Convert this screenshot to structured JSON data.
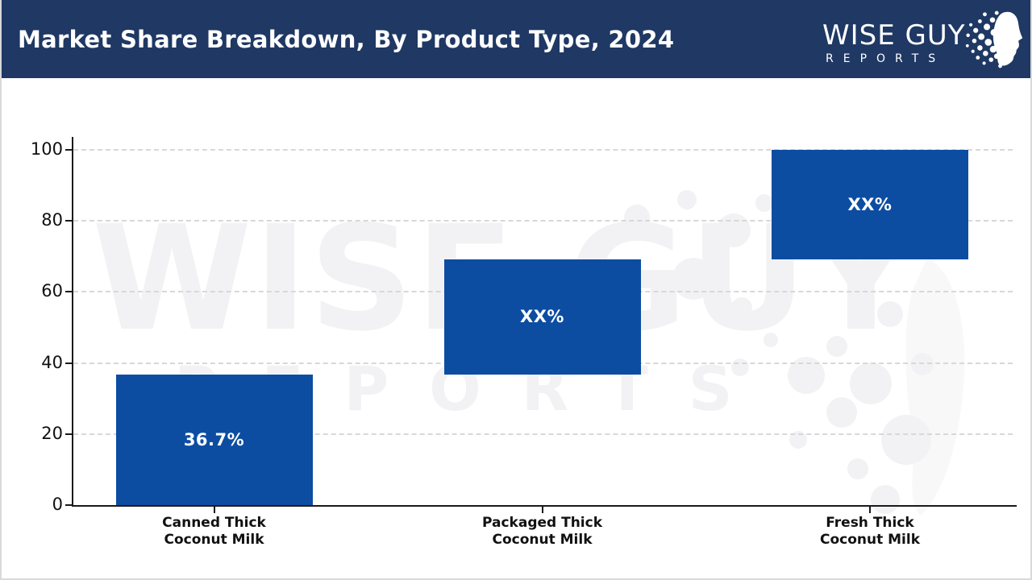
{
  "header": {
    "title": "Market Share Breakdown, By Product Type, 2024",
    "logo": {
      "name": "WISE GUY",
      "subtitle": "REPORTS",
      "icon": "dotted-face-profile-icon"
    }
  },
  "watermark": {
    "name": "WISE GUY",
    "subtitle": "REPORTS"
  },
  "chart_data": {
    "type": "bar",
    "variant": "waterfall",
    "title": "Market Share Breakdown, By Product Type, 2024",
    "categories": [
      {
        "lines": [
          "Canned Thick",
          "Coconut Milk"
        ]
      },
      {
        "lines": [
          "Packaged Thick",
          "Coconut Milk"
        ]
      },
      {
        "lines": [
          "Fresh Thick",
          "Coconut Milk"
        ]
      }
    ],
    "segments": [
      {
        "category": "Canned Thick Coconut Milk",
        "start": 0,
        "end": 36.7,
        "value": 36.7,
        "label": "36.7%"
      },
      {
        "category": "Packaged Thick Coconut Milk",
        "start": 36.7,
        "end": 69.2,
        "value": 32.5,
        "label": "XX%"
      },
      {
        "category": "Fresh Thick Coconut Milk",
        "start": 69.2,
        "end": 100,
        "value": 30.8,
        "label": "XX%"
      }
    ],
    "ylim": [
      0,
      100
    ],
    "yticks": [
      0,
      20,
      40,
      60,
      80,
      100
    ],
    "xlabel": "",
    "ylabel": "",
    "grid": {
      "horizontal": true,
      "style": "dashed"
    },
    "bar_color": "#0c4da2",
    "bar_label_color": "#ffffff"
  },
  "colors": {
    "header_bg": "#1f3864",
    "header_text": "#ffffff",
    "bar": "#0c4da2",
    "axis": "#1a1a1a",
    "grid": "#d8d8d8",
    "tick_text": "#111111",
    "watermark": "#f2f2f4",
    "page_bg": "#ffffff",
    "border": "#d9d9d9"
  }
}
